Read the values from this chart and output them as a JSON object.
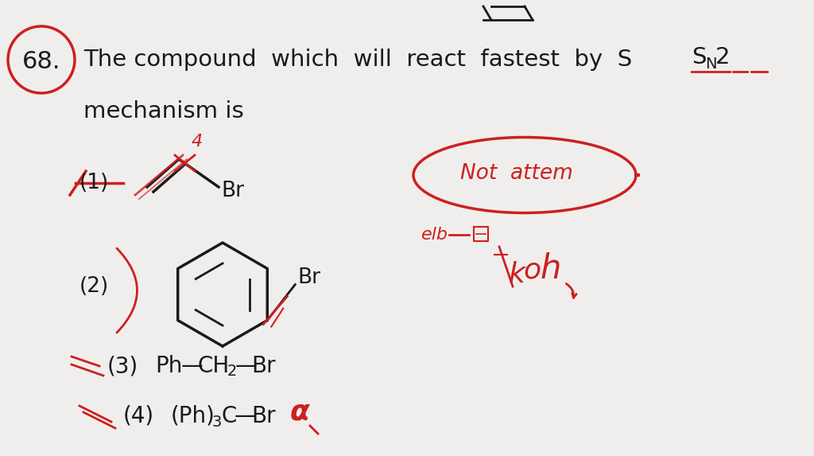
{
  "background_color": "#f0eeec",
  "text_color": "#1a1a1a",
  "red_color": "#cc2020",
  "fig_width": 10.24,
  "fig_height": 5.73,
  "q_num": "68.",
  "q_line1": "The compound which will react fastest by S",
  "q_sn2_S": "S",
  "q_sn2_N": "N",
  "q_sn2_2": "2",
  "q_line2": "mechanism is",
  "opt1": "(1)",
  "opt2": "(2)",
  "opt3": "(3)",
  "opt3_text": "Ph—CH",
  "opt3_sub": "2",
  "opt3_end": "—Br",
  "opt4": "(4)",
  "opt4_text": "(Ph)",
  "opt4_sub": "3",
  "opt4_end": "C—Br",
  "not_attem": "Not attem",
  "koh": "koh",
  "font_size_main": 21,
  "font_size_opt": 20
}
